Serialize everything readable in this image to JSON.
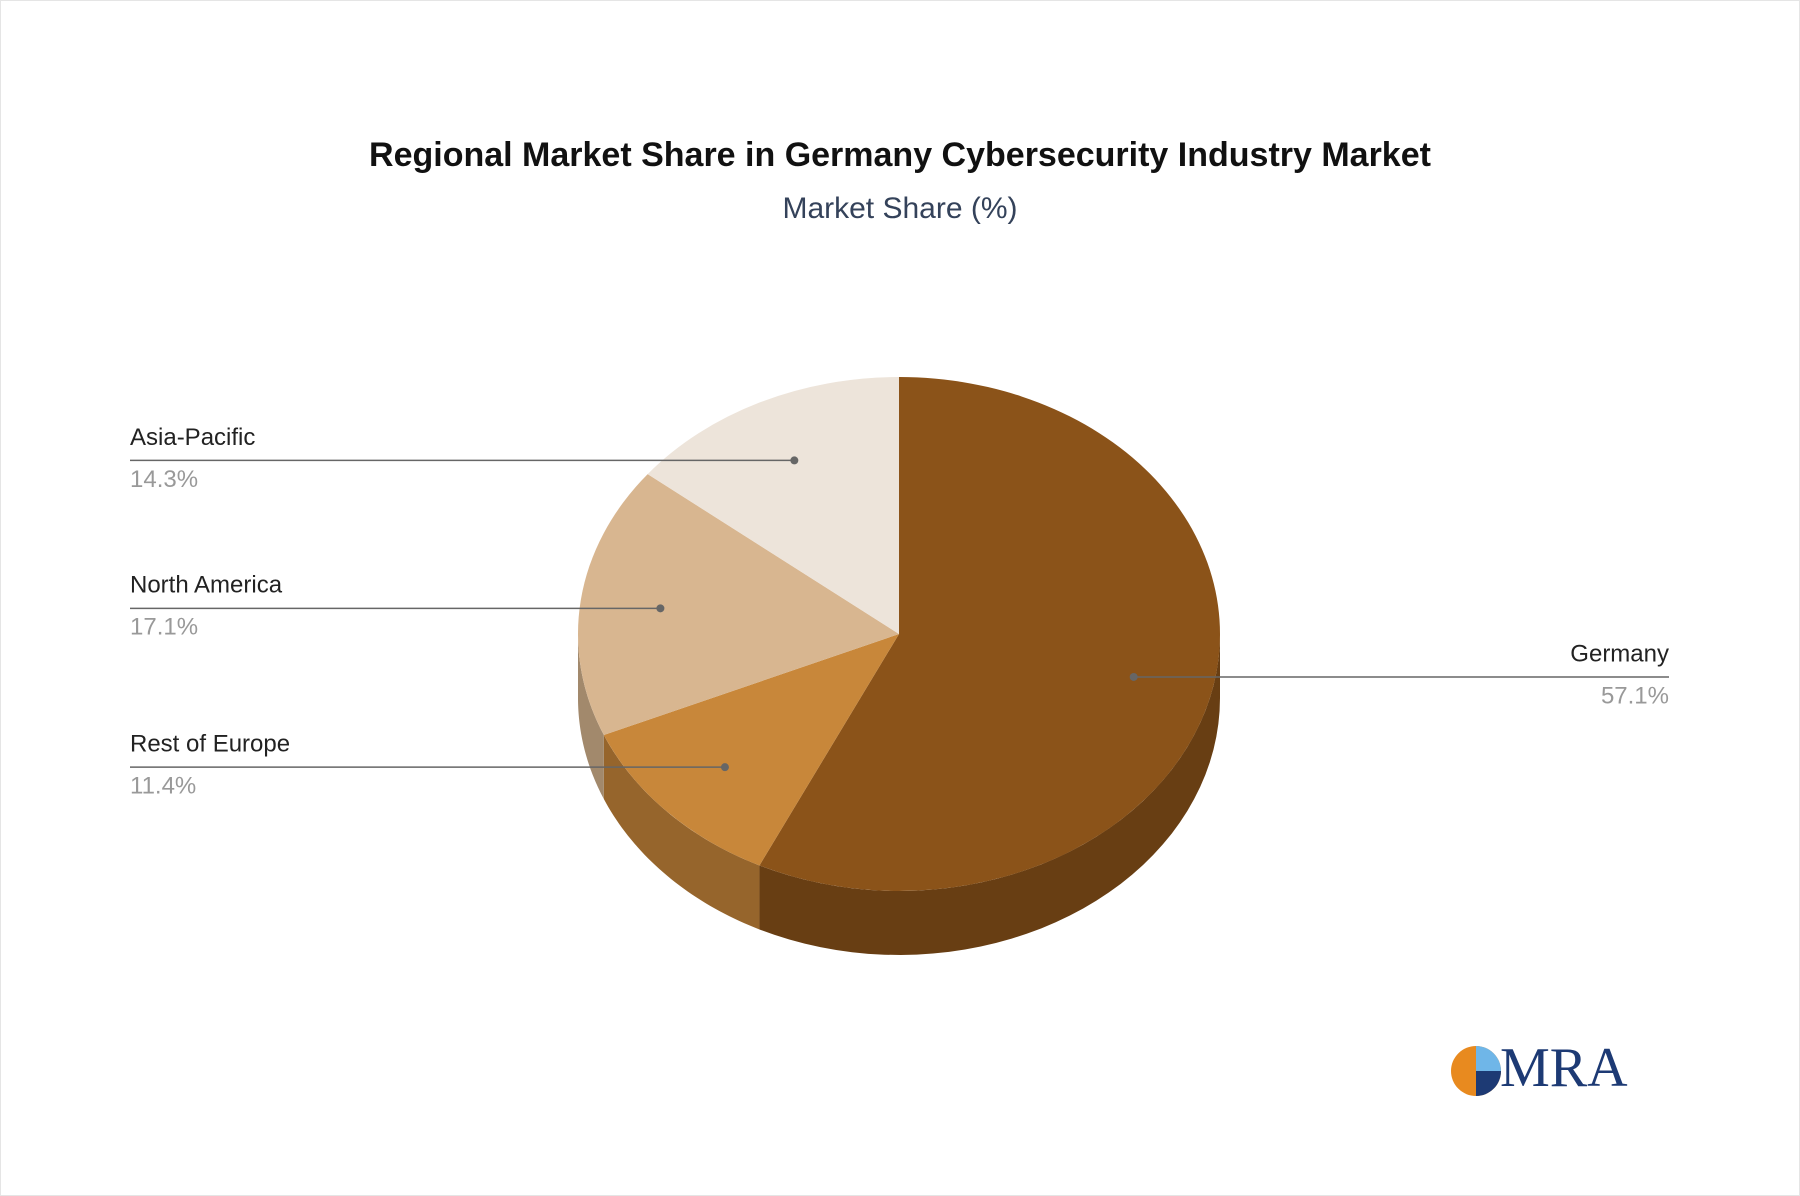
{
  "chart_data": {
    "type": "pie3d",
    "title": "Regional Market Share in Germany Cybersecurity Industry Market",
    "subtitle": "Market Share (%)",
    "categories": [
      "Germany",
      "Rest of Europe",
      "North America",
      "Asia-Pacific"
    ],
    "values": [
      57.1,
      11.4,
      17.1,
      14.3
    ],
    "value_labels": [
      "57.1%",
      "11.4%",
      "17.1%",
      "14.3%"
    ],
    "colors": [
      "#8b5319",
      "#c8873a",
      "#d8b690",
      "#ede4da"
    ]
  },
  "logo": "MRA"
}
